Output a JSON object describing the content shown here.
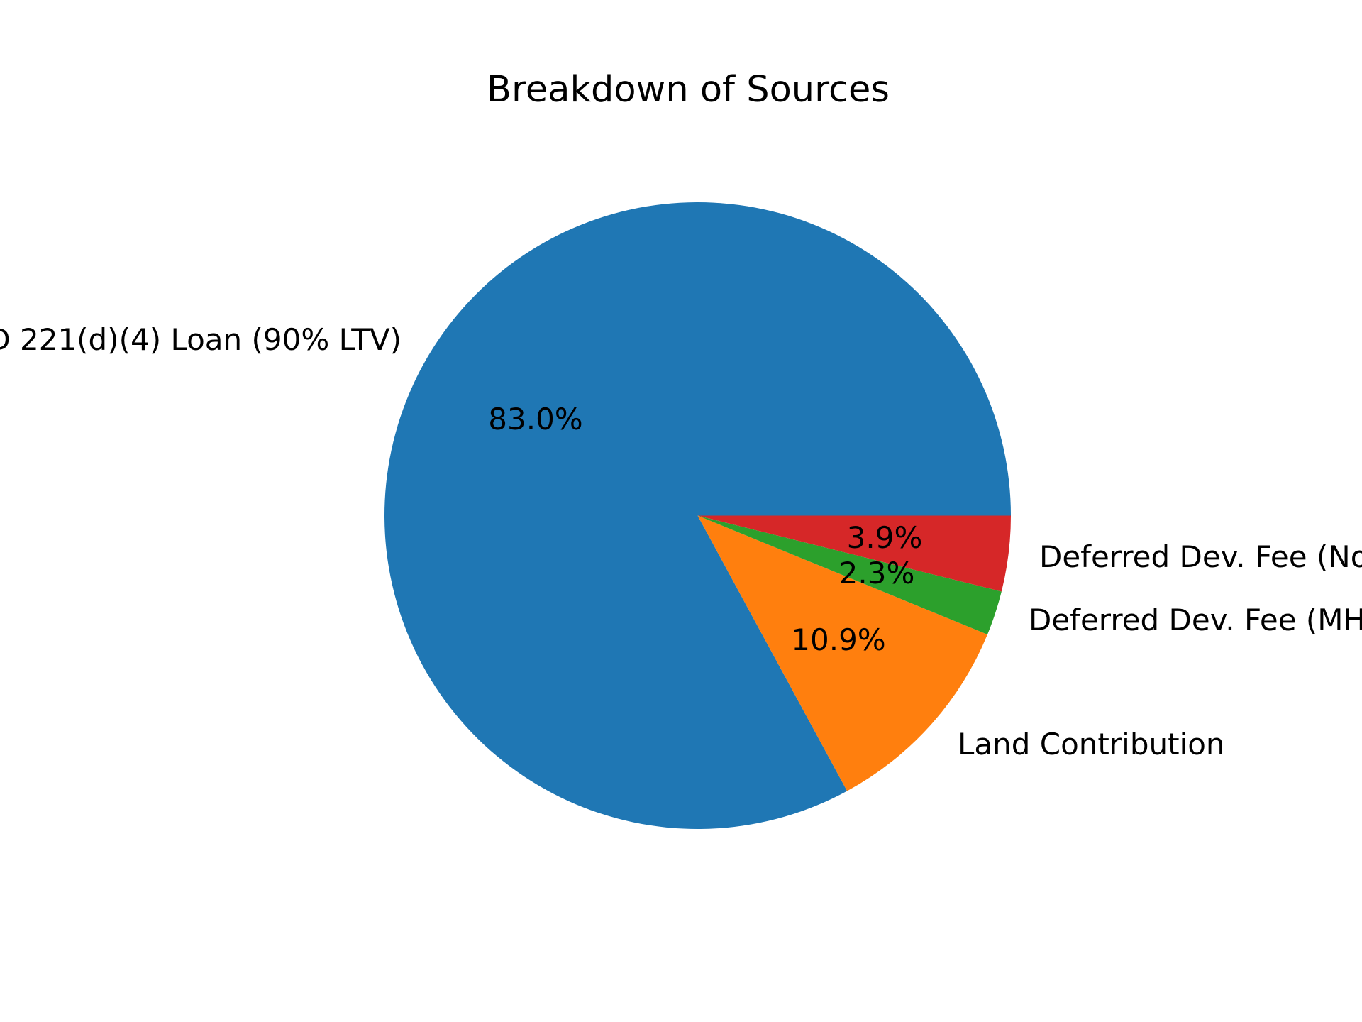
{
  "page": {
    "background": "#ffffff",
    "text_color": "#000000"
  },
  "chart_data": {
    "type": "pie",
    "title": "Breakdown of Sources",
    "start_angle": 0,
    "direction": "counterclockwise",
    "pct_distance": 0.6,
    "label_distance": 1.1,
    "legend": "none",
    "slices": [
      {
        "label": "D 221(d)(4) Loan (90% LTV)",
        "value": 83.0,
        "pct_label": "83.0%",
        "color": "#1f77b4"
      },
      {
        "label": "Land Contribution",
        "value": 10.9,
        "pct_label": "10.9%",
        "color": "#ff7f0e"
      },
      {
        "label": "Deferred Dev. Fee (MH",
        "value": 2.3,
        "pct_label": "2.3%",
        "color": "#2ca02c"
      },
      {
        "label": "Deferred Dev. Fee (No",
        "value": 3.9,
        "pct_label": "3.9%",
        "color": "#d62728"
      }
    ]
  }
}
